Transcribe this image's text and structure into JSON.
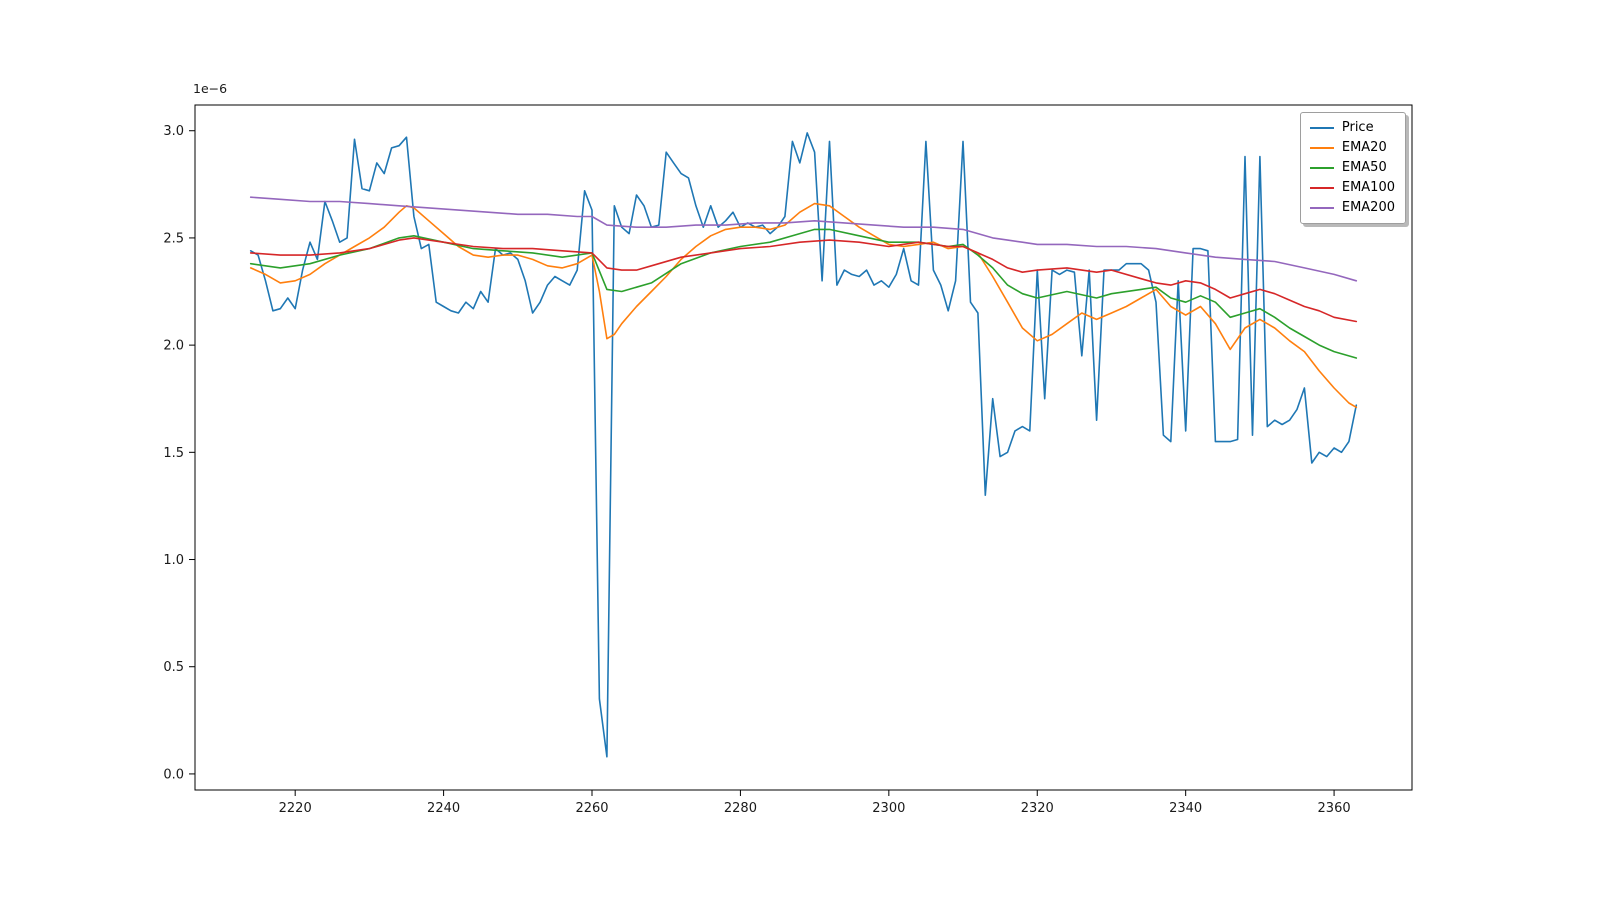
{
  "chart_data": {
    "type": "line",
    "title": "",
    "xlabel": "",
    "ylabel": "",
    "offset_text": "1e−6",
    "grid": false,
    "legend_position": "upper right",
    "xlim": [
      2206.5,
      2370.5
    ],
    "ylim": [
      -0.075,
      3.12
    ],
    "x_ticks": [
      2220,
      2240,
      2260,
      2280,
      2300,
      2320,
      2340,
      2360
    ],
    "y_ticks": [
      0.0,
      0.5,
      1.0,
      1.5,
      2.0,
      2.5,
      3.0
    ],
    "series": [
      {
        "name": "Price",
        "color": "#1f77b4",
        "x_start": 2214,
        "x_step": 1,
        "values": [
          2.44,
          2.42,
          2.3,
          2.16,
          2.17,
          2.22,
          2.17,
          2.35,
          2.48,
          2.4,
          2.67,
          2.58,
          2.48,
          2.5,
          2.96,
          2.73,
          2.72,
          2.85,
          2.8,
          2.92,
          2.93,
          2.97,
          2.6,
          2.45,
          2.47,
          2.2,
          2.18,
          2.16,
          2.15,
          2.2,
          2.17,
          2.25,
          2.2,
          2.45,
          2.42,
          2.43,
          2.4,
          2.3,
          2.15,
          2.2,
          2.28,
          2.32,
          2.3,
          2.28,
          2.35,
          2.72,
          2.63,
          0.35,
          0.08,
          2.65,
          2.55,
          2.52,
          2.7,
          2.65,
          2.55,
          2.56,
          2.9,
          2.85,
          2.8,
          2.78,
          2.65,
          2.55,
          2.65,
          2.55,
          2.58,
          2.62,
          2.55,
          2.57,
          2.55,
          2.56,
          2.52,
          2.55,
          2.6,
          2.95,
          2.85,
          2.99,
          2.9,
          2.3,
          2.95,
          2.28,
          2.35,
          2.33,
          2.32,
          2.35,
          2.28,
          2.3,
          2.27,
          2.33,
          2.45,
          2.3,
          2.28,
          2.95,
          2.35,
          2.28,
          2.16,
          2.3,
          2.95,
          2.2,
          2.15,
          1.3,
          1.75,
          1.48,
          1.5,
          1.6,
          1.62,
          1.6,
          2.35,
          1.75,
          2.35,
          2.33,
          2.35,
          2.34,
          1.95,
          2.35,
          1.65,
          2.35,
          2.35,
          2.35,
          2.38,
          2.38,
          2.38,
          2.35,
          2.2,
          1.58,
          1.55,
          2.3,
          1.6,
          2.45,
          2.45,
          2.44,
          1.55,
          1.55,
          1.55,
          1.56,
          2.88,
          1.58,
          2.88,
          1.62,
          1.65,
          1.63,
          1.65,
          1.7,
          1.8,
          1.45,
          1.5,
          1.48,
          1.52,
          1.5,
          1.55,
          1.72
        ]
      },
      {
        "name": "EMA20",
        "color": "#ff7f0e",
        "points": [
          [
            2214,
            2.36
          ],
          [
            2216,
            2.33
          ],
          [
            2218,
            2.29
          ],
          [
            2220,
            2.3
          ],
          [
            2222,
            2.33
          ],
          [
            2224,
            2.38
          ],
          [
            2226,
            2.42
          ],
          [
            2228,
            2.46
          ],
          [
            2230,
            2.5
          ],
          [
            2232,
            2.55
          ],
          [
            2234,
            2.62
          ],
          [
            2235,
            2.65
          ],
          [
            2236,
            2.64
          ],
          [
            2238,
            2.58
          ],
          [
            2240,
            2.52
          ],
          [
            2242,
            2.46
          ],
          [
            2244,
            2.42
          ],
          [
            2246,
            2.41
          ],
          [
            2248,
            2.42
          ],
          [
            2250,
            2.42
          ],
          [
            2252,
            2.4
          ],
          [
            2254,
            2.37
          ],
          [
            2256,
            2.36
          ],
          [
            2258,
            2.38
          ],
          [
            2260,
            2.42
          ],
          [
            2261,
            2.25
          ],
          [
            2262,
            2.03
          ],
          [
            2263,
            2.05
          ],
          [
            2264,
            2.1
          ],
          [
            2266,
            2.18
          ],
          [
            2268,
            2.25
          ],
          [
            2270,
            2.32
          ],
          [
            2272,
            2.4
          ],
          [
            2274,
            2.46
          ],
          [
            2276,
            2.51
          ],
          [
            2278,
            2.54
          ],
          [
            2280,
            2.55
          ],
          [
            2282,
            2.55
          ],
          [
            2284,
            2.54
          ],
          [
            2286,
            2.56
          ],
          [
            2288,
            2.62
          ],
          [
            2290,
            2.66
          ],
          [
            2292,
            2.65
          ],
          [
            2294,
            2.6
          ],
          [
            2296,
            2.55
          ],
          [
            2298,
            2.51
          ],
          [
            2300,
            2.47
          ],
          [
            2302,
            2.46
          ],
          [
            2304,
            2.47
          ],
          [
            2306,
            2.48
          ],
          [
            2308,
            2.45
          ],
          [
            2310,
            2.46
          ],
          [
            2312,
            2.43
          ],
          [
            2314,
            2.32
          ],
          [
            2316,
            2.2
          ],
          [
            2318,
            2.08
          ],
          [
            2320,
            2.02
          ],
          [
            2322,
            2.05
          ],
          [
            2324,
            2.1
          ],
          [
            2326,
            2.15
          ],
          [
            2328,
            2.12
          ],
          [
            2330,
            2.15
          ],
          [
            2332,
            2.18
          ],
          [
            2334,
            2.22
          ],
          [
            2336,
            2.26
          ],
          [
            2338,
            2.18
          ],
          [
            2340,
            2.14
          ],
          [
            2342,
            2.18
          ],
          [
            2344,
            2.1
          ],
          [
            2346,
            1.98
          ],
          [
            2348,
            2.08
          ],
          [
            2350,
            2.12
          ],
          [
            2352,
            2.08
          ],
          [
            2354,
            2.02
          ],
          [
            2356,
            1.97
          ],
          [
            2358,
            1.88
          ],
          [
            2360,
            1.8
          ],
          [
            2362,
            1.73
          ],
          [
            2363,
            1.71
          ]
        ]
      },
      {
        "name": "EMA50",
        "color": "#2ca02c",
        "points": [
          [
            2214,
            2.38
          ],
          [
            2218,
            2.36
          ],
          [
            2222,
            2.38
          ],
          [
            2226,
            2.42
          ],
          [
            2230,
            2.45
          ],
          [
            2234,
            2.5
          ],
          [
            2236,
            2.51
          ],
          [
            2240,
            2.48
          ],
          [
            2244,
            2.45
          ],
          [
            2248,
            2.44
          ],
          [
            2252,
            2.43
          ],
          [
            2256,
            2.41
          ],
          [
            2260,
            2.43
          ],
          [
            2262,
            2.26
          ],
          [
            2264,
            2.25
          ],
          [
            2266,
            2.27
          ],
          [
            2268,
            2.29
          ],
          [
            2272,
            2.38
          ],
          [
            2276,
            2.43
          ],
          [
            2280,
            2.46
          ],
          [
            2284,
            2.48
          ],
          [
            2288,
            2.52
          ],
          [
            2290,
            2.54
          ],
          [
            2292,
            2.54
          ],
          [
            2296,
            2.51
          ],
          [
            2300,
            2.48
          ],
          [
            2304,
            2.48
          ],
          [
            2308,
            2.46
          ],
          [
            2310,
            2.47
          ],
          [
            2312,
            2.42
          ],
          [
            2314,
            2.36
          ],
          [
            2316,
            2.28
          ],
          [
            2318,
            2.24
          ],
          [
            2320,
            2.22
          ],
          [
            2324,
            2.25
          ],
          [
            2328,
            2.22
          ],
          [
            2330,
            2.24
          ],
          [
            2334,
            2.26
          ],
          [
            2336,
            2.27
          ],
          [
            2338,
            2.22
          ],
          [
            2340,
            2.2
          ],
          [
            2342,
            2.23
          ],
          [
            2344,
            2.2
          ],
          [
            2346,
            2.13
          ],
          [
            2348,
            2.15
          ],
          [
            2350,
            2.17
          ],
          [
            2352,
            2.13
          ],
          [
            2354,
            2.08
          ],
          [
            2356,
            2.04
          ],
          [
            2358,
            2.0
          ],
          [
            2360,
            1.97
          ],
          [
            2363,
            1.94
          ]
        ]
      },
      {
        "name": "EMA100",
        "color": "#d62728",
        "points": [
          [
            2214,
            2.43
          ],
          [
            2218,
            2.42
          ],
          [
            2222,
            2.42
          ],
          [
            2226,
            2.43
          ],
          [
            2230,
            2.45
          ],
          [
            2234,
            2.49
          ],
          [
            2236,
            2.5
          ],
          [
            2240,
            2.48
          ],
          [
            2244,
            2.46
          ],
          [
            2248,
            2.45
          ],
          [
            2252,
            2.45
          ],
          [
            2256,
            2.44
          ],
          [
            2260,
            2.43
          ],
          [
            2262,
            2.36
          ],
          [
            2264,
            2.35
          ],
          [
            2266,
            2.35
          ],
          [
            2268,
            2.37
          ],
          [
            2272,
            2.41
          ],
          [
            2276,
            2.43
          ],
          [
            2280,
            2.45
          ],
          [
            2284,
            2.46
          ],
          [
            2288,
            2.48
          ],
          [
            2292,
            2.49
          ],
          [
            2296,
            2.48
          ],
          [
            2300,
            2.46
          ],
          [
            2304,
            2.48
          ],
          [
            2308,
            2.46
          ],
          [
            2310,
            2.46
          ],
          [
            2312,
            2.43
          ],
          [
            2314,
            2.4
          ],
          [
            2316,
            2.36
          ],
          [
            2318,
            2.34
          ],
          [
            2320,
            2.35
          ],
          [
            2324,
            2.36
          ],
          [
            2328,
            2.34
          ],
          [
            2330,
            2.35
          ],
          [
            2334,
            2.31
          ],
          [
            2336,
            2.29
          ],
          [
            2338,
            2.28
          ],
          [
            2340,
            2.3
          ],
          [
            2342,
            2.29
          ],
          [
            2344,
            2.26
          ],
          [
            2346,
            2.22
          ],
          [
            2348,
            2.24
          ],
          [
            2350,
            2.26
          ],
          [
            2352,
            2.24
          ],
          [
            2354,
            2.21
          ],
          [
            2356,
            2.18
          ],
          [
            2358,
            2.16
          ],
          [
            2360,
            2.13
          ],
          [
            2363,
            2.11
          ]
        ]
      },
      {
        "name": "EMA200",
        "color": "#9467bd",
        "points": [
          [
            2214,
            2.69
          ],
          [
            2218,
            2.68
          ],
          [
            2222,
            2.67
          ],
          [
            2226,
            2.67
          ],
          [
            2230,
            2.66
          ],
          [
            2234,
            2.65
          ],
          [
            2238,
            2.64
          ],
          [
            2242,
            2.63
          ],
          [
            2246,
            2.62
          ],
          [
            2250,
            2.61
          ],
          [
            2254,
            2.61
          ],
          [
            2258,
            2.6
          ],
          [
            2260,
            2.6
          ],
          [
            2262,
            2.56
          ],
          [
            2266,
            2.55
          ],
          [
            2270,
            2.55
          ],
          [
            2274,
            2.56
          ],
          [
            2278,
            2.56
          ],
          [
            2282,
            2.57
          ],
          [
            2286,
            2.57
          ],
          [
            2290,
            2.58
          ],
          [
            2294,
            2.57
          ],
          [
            2298,
            2.56
          ],
          [
            2302,
            2.55
          ],
          [
            2306,
            2.55
          ],
          [
            2310,
            2.54
          ],
          [
            2312,
            2.52
          ],
          [
            2314,
            2.5
          ],
          [
            2316,
            2.49
          ],
          [
            2318,
            2.48
          ],
          [
            2320,
            2.47
          ],
          [
            2324,
            2.47
          ],
          [
            2328,
            2.46
          ],
          [
            2332,
            2.46
          ],
          [
            2336,
            2.45
          ],
          [
            2340,
            2.43
          ],
          [
            2344,
            2.41
          ],
          [
            2348,
            2.4
          ],
          [
            2352,
            2.39
          ],
          [
            2356,
            2.36
          ],
          [
            2360,
            2.33
          ],
          [
            2363,
            2.3
          ]
        ]
      }
    ],
    "legend": {
      "labels": [
        "Price",
        "EMA20",
        "EMA50",
        "EMA100",
        "EMA200"
      ]
    }
  }
}
